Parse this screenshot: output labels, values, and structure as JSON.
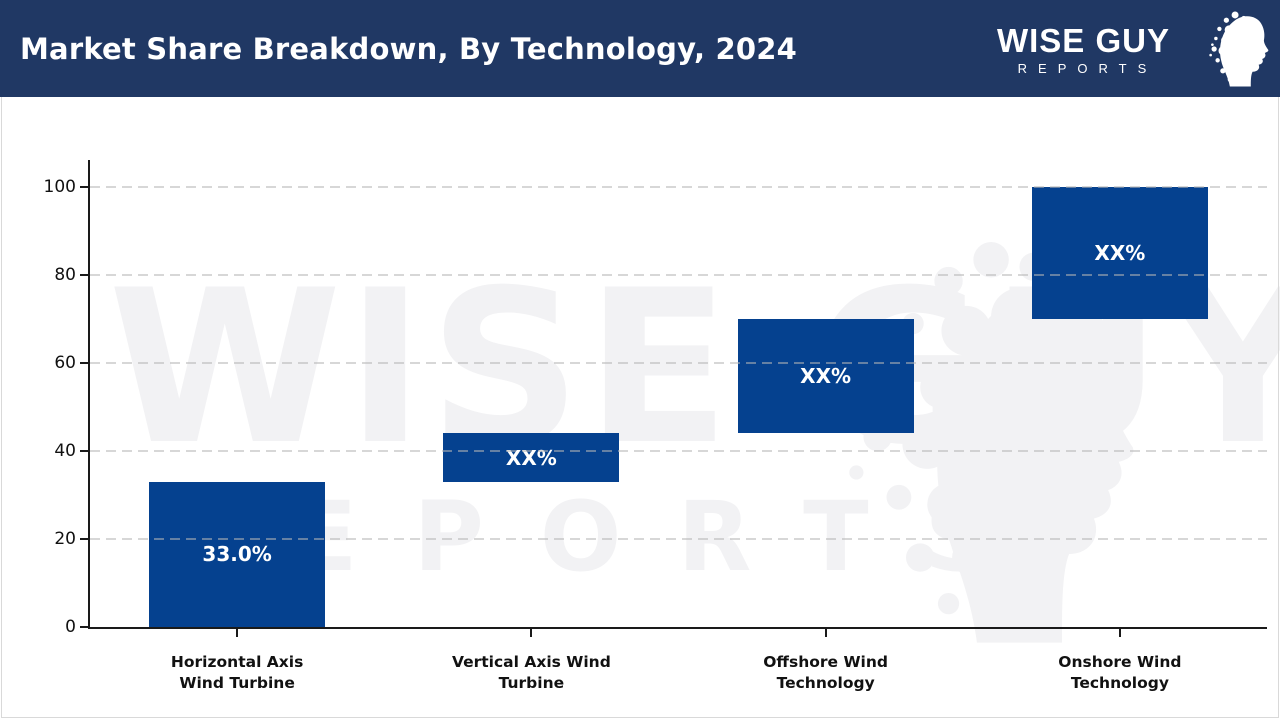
{
  "header": {
    "title": "Market Share Breakdown, By Technology, 2024",
    "logo": {
      "line1": "WISE GUY",
      "line2": "REPORTS"
    }
  },
  "watermark": {
    "line1": "WISE GUY",
    "line2": "REPORTS"
  },
  "chart_data": {
    "type": "bar",
    "subtype": "waterfall",
    "title": "Market Share Breakdown, By Technology, 2024",
    "categories": [
      "Horizontal Axis\nWind Turbine",
      "Vertical Axis Wind\nTurbine",
      "Offshore Wind\nTechnology",
      "Onshore Wind\nTechnology"
    ],
    "segments": [
      {
        "category": "Horizontal Axis Wind Turbine",
        "start": 0,
        "end": 33,
        "label": "33.0%"
      },
      {
        "category": "Vertical Axis Wind Turbine",
        "start": 33,
        "end": 44,
        "label": "XX%"
      },
      {
        "category": "Offshore Wind Technology",
        "start": 44,
        "end": 70,
        "label": "XX%"
      },
      {
        "category": "Onshore Wind Technology",
        "start": 70,
        "end": 100,
        "label": "XX%"
      }
    ],
    "ylim": [
      0,
      100
    ],
    "yticks": [
      0,
      20,
      40,
      60,
      80,
      100
    ],
    "grid": "horizontal-dashed",
    "legend": "none",
    "colors": {
      "bar": "#05418f",
      "bar_label": "#ffffff",
      "header_bg": "#203864",
      "axis": "#1a1a1a",
      "grid": "#d9d9d9",
      "watermark": "#f2f2f4"
    }
  }
}
